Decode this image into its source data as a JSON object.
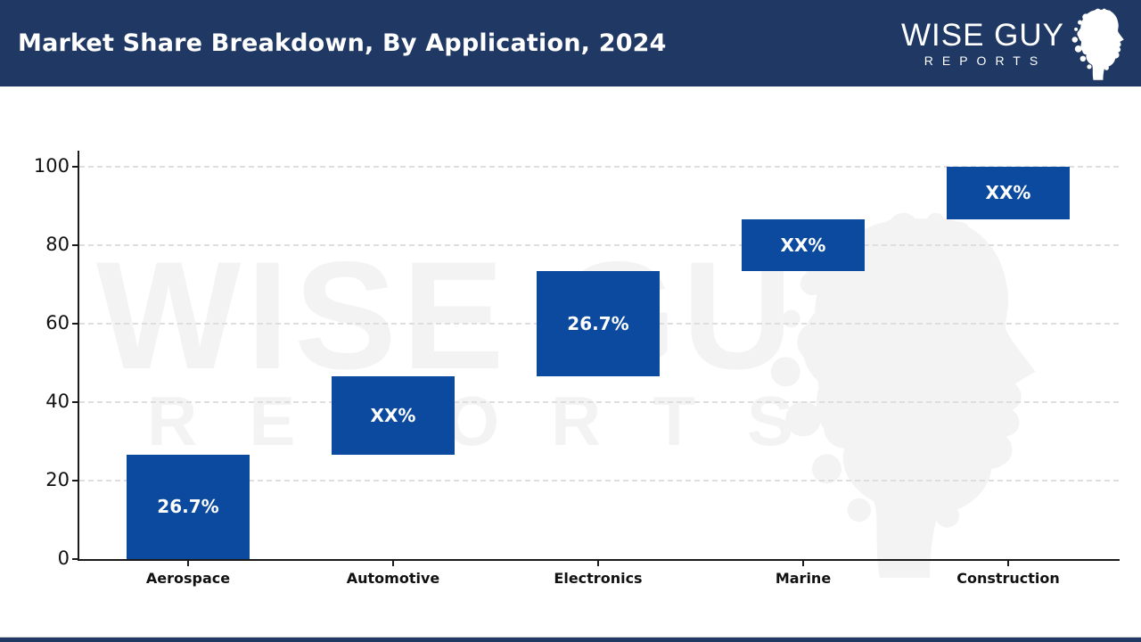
{
  "header": {
    "title": "Market Share Breakdown, By Application, 2024",
    "logo": {
      "primary": "WISE GUY",
      "secondary": "REPORTS"
    }
  },
  "watermark": {
    "primary": "WISE GUY",
    "secondary": "REPORTS"
  },
  "chart_data": {
    "type": "bar",
    "subtype": "waterfall",
    "title": "Market Share Breakdown, By Application, 2024",
    "categories": [
      "Aerospace",
      "Automotive",
      "Electronics",
      "Marine",
      "Construction"
    ],
    "segments": [
      {
        "category": "Aerospace",
        "start": 0,
        "end": 26.7,
        "label": "26.7%"
      },
      {
        "category": "Automotive",
        "start": 26.7,
        "end": 46.7,
        "label": "XX%"
      },
      {
        "category": "Electronics",
        "start": 46.7,
        "end": 73.4,
        "label": "26.7%"
      },
      {
        "category": "Marine",
        "start": 73.4,
        "end": 86.7,
        "label": "XX%"
      },
      {
        "category": "Construction",
        "start": 86.7,
        "end": 100,
        "label": "XX%"
      }
    ],
    "xlabel": "",
    "ylabel": "",
    "ylim": [
      0,
      100
    ],
    "yticks": [
      0,
      20,
      40,
      60,
      80,
      100
    ],
    "grid": "horizontal-dashed",
    "legend": "none",
    "bar_color": "#0b4a9e",
    "bar_label_color": "#ffffff"
  },
  "colors": {
    "header_bg": "#1f3864",
    "footer_bg": "#1f3864",
    "bar": "#0b4a9e",
    "grid": "#dedede",
    "axis": "#1a1a1a",
    "watermark": "#f3f3f4"
  }
}
